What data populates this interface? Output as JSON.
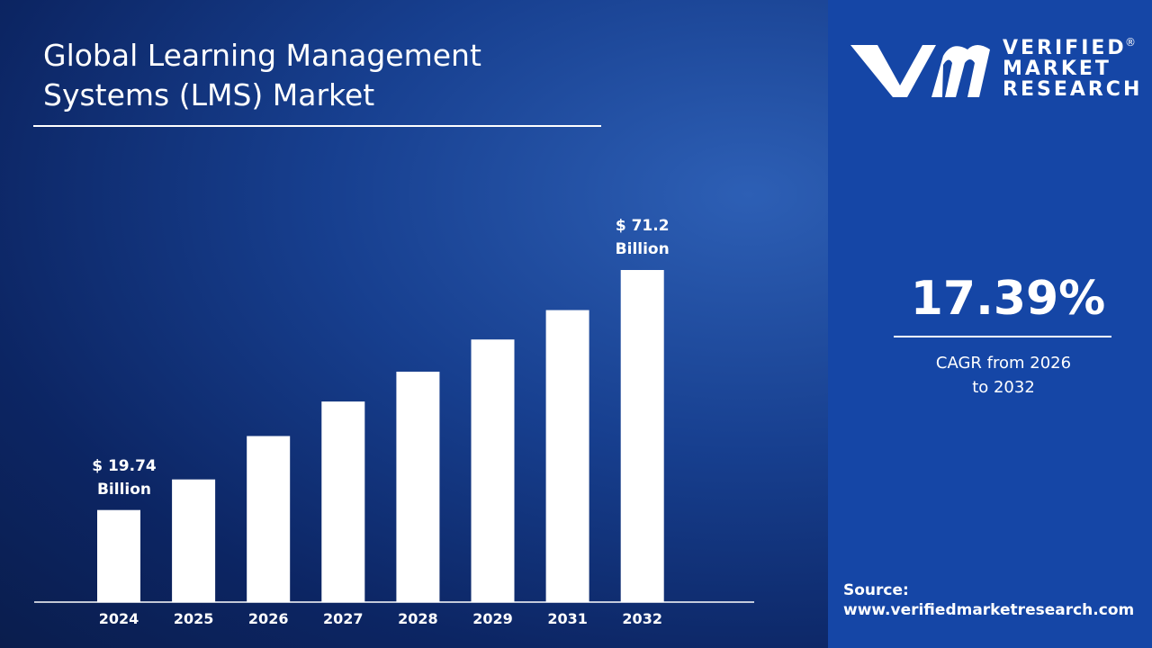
{
  "chart_data": {
    "type": "bar",
    "title": "Global Learning Management Systems (LMS) Market",
    "categories": [
      "2024",
      "2025",
      "2026",
      "2027",
      "2028",
      "2029",
      "2031",
      "2032"
    ],
    "values": [
      19.74,
      26.3,
      35.6,
      43.0,
      49.4,
      56.3,
      62.6,
      71.2
    ],
    "value_labels": [
      "$ 19.74 Billion",
      null,
      null,
      null,
      null,
      null,
      null,
      "$ 71.2 Billion"
    ],
    "color": "#ffffff"
  },
  "brand": {
    "lines": [
      "VERIFIED",
      "MARKET",
      "RESEARCH"
    ],
    "mark": "®"
  },
  "cagr": {
    "value": "17.39%",
    "caption": "CAGR from 2026 to 2032"
  },
  "source": {
    "label": "Source:",
    "url": "www.verifiedmarketresearch.com"
  }
}
